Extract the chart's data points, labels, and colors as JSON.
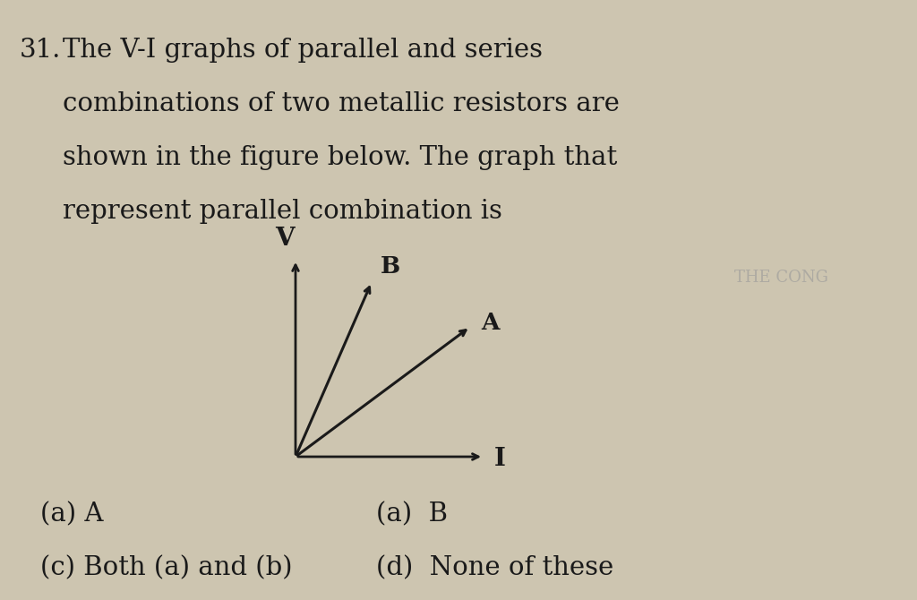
{
  "background_color": "#cdc5b0",
  "text_area_color": "#d6cdb8",
  "text_color": "#1a1a1a",
  "question_number": "31.",
  "question_lines": [
    "The V-I graphs of parallel and series",
    "combinations of two metallic resistors are",
    "shown in the figure below. The graph that",
    "represent parallel combination is"
  ],
  "options_row1": [
    "(a) A",
    "(a)  B"
  ],
  "options_row2": [
    "(c) Both (a) and (b)",
    "(d)  None of these"
  ],
  "graph": {
    "label_V": "V",
    "label_I": "I",
    "label_A": "A",
    "label_B": "B"
  },
  "watermark": "THE CONG",
  "font_family": "serif"
}
